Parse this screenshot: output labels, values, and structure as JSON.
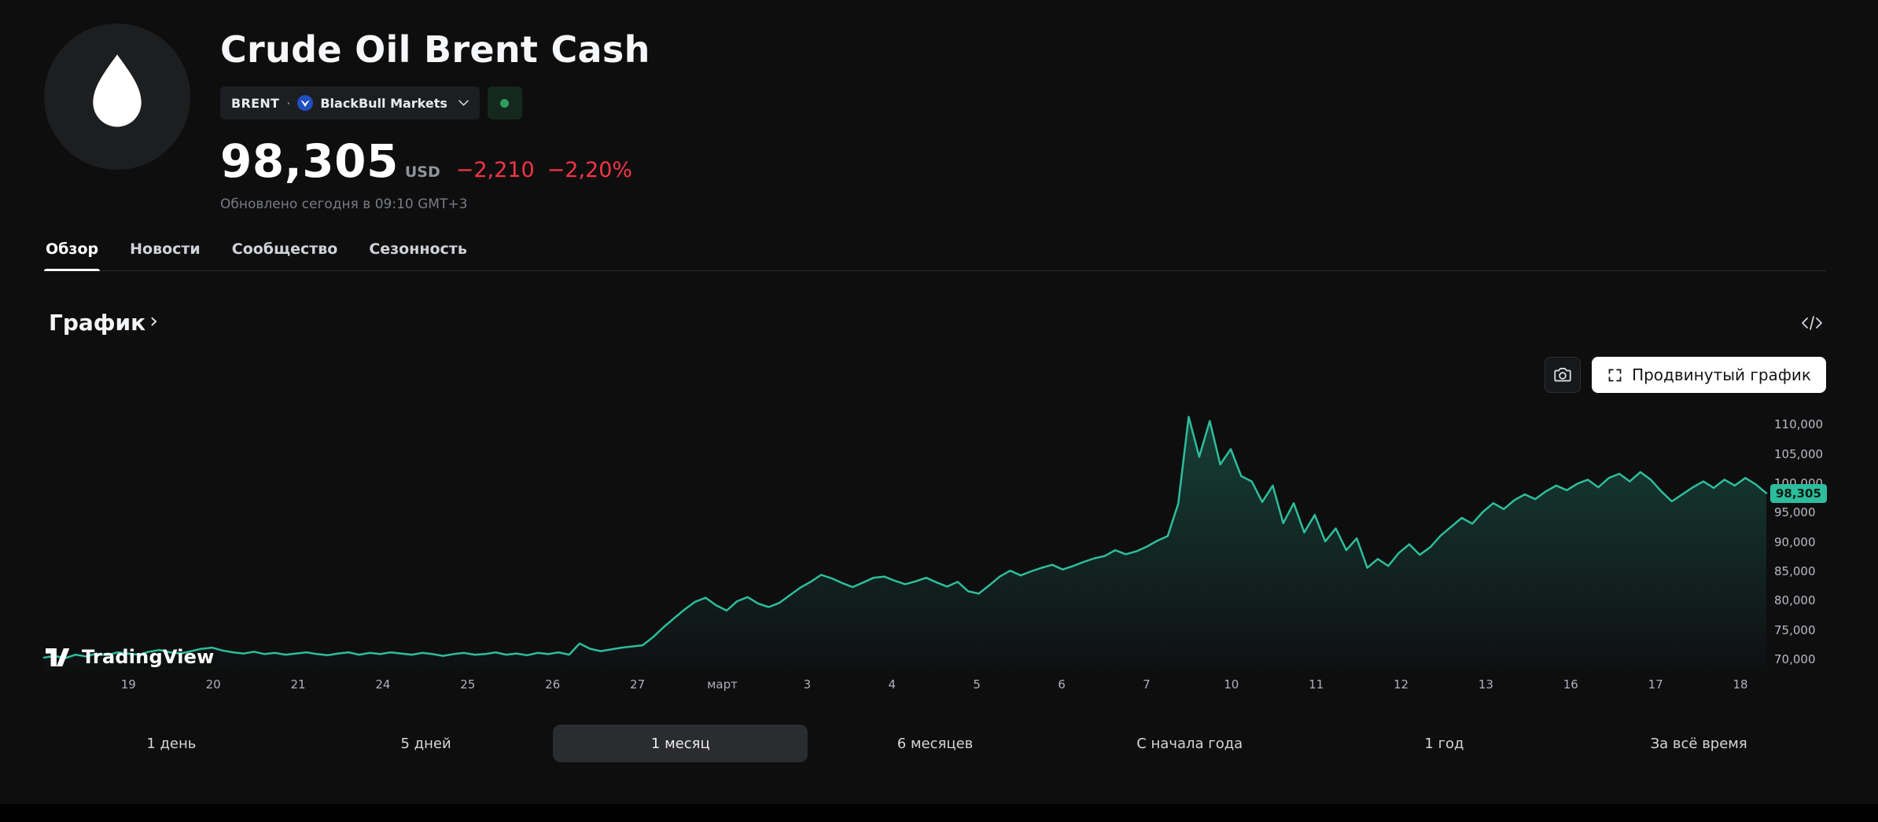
{
  "header": {
    "title": "Crude Oil Brent Cash",
    "symbol": "BRENT",
    "separator": "·",
    "broker": "BlackBull Markets",
    "price": "98,305",
    "currency": "USD",
    "change": "−2,210",
    "change_pct": "−2,20%",
    "change_color": "#f23645",
    "status_color": "#2e9e5b",
    "updated": "Обновлено сегодня в 09:10 GMT+3"
  },
  "tabs": [
    {
      "label": "Обзор",
      "active": true
    },
    {
      "label": "Новости",
      "active": false
    },
    {
      "label": "Сообщество",
      "active": false
    },
    {
      "label": "Сезонность",
      "active": false
    }
  ],
  "section": {
    "title": "График",
    "chevron": "›"
  },
  "chart_toolbar": {
    "advanced_button": "Продвинутый график"
  },
  "watermark": "TradingView",
  "ranges": [
    {
      "label": "1 день",
      "active": false
    },
    {
      "label": "5 дней",
      "active": false
    },
    {
      "label": "1 месяц",
      "active": true
    },
    {
      "label": "6 месяцев",
      "active": false
    },
    {
      "label": "С начала года",
      "active": false
    },
    {
      "label": "1 год",
      "active": false
    },
    {
      "label": "За всё время",
      "active": false
    }
  ],
  "chart_data": {
    "type": "area",
    "title": "Crude Oil Brent Cash — 1 месяц",
    "line_color": "#2ebd9c",
    "grid": false,
    "legend": false,
    "ylim": [
      68,
      113.5
    ],
    "x_labels": [
      "19",
      "20",
      "21",
      "24",
      "25",
      "26",
      "27",
      "март",
      "3",
      "4",
      "5",
      "6",
      "7",
      "10",
      "11",
      "12",
      "13",
      "16",
      "17",
      "18"
    ],
    "y_ticks": [
      {
        "value": 110,
        "label": "110,000"
      },
      {
        "value": 105,
        "label": "105,000"
      },
      {
        "value": 100,
        "label": "100,000"
      },
      {
        "value": 95,
        "label": "95,000"
      },
      {
        "value": 90,
        "label": "90,000"
      },
      {
        "value": 85,
        "label": "85,000"
      },
      {
        "value": 80,
        "label": "80,000"
      },
      {
        "value": 75,
        "label": "75,000"
      },
      {
        "value": 70,
        "label": "70,000"
      }
    ],
    "last_price": {
      "value": 98.305,
      "label": "98,305"
    },
    "values": [
      70.3,
      70.6,
      70.2,
      70.8,
      70.5,
      71.0,
      70.7,
      71.2,
      71.0,
      70.8,
      71.3,
      71.6,
      71.2,
      71.0,
      71.4,
      71.8,
      72.0,
      71.5,
      71.2,
      71.0,
      71.3,
      70.9,
      71.1,
      70.8,
      71.0,
      71.2,
      70.9,
      70.7,
      71.0,
      71.2,
      70.8,
      71.1,
      70.9,
      71.2,
      71.0,
      70.8,
      71.1,
      70.9,
      70.6,
      70.9,
      71.1,
      70.8,
      70.9,
      71.2,
      70.8,
      71.0,
      70.7,
      71.1,
      70.9,
      71.2,
      70.8,
      72.7,
      71.8,
      71.4,
      71.7,
      72.0,
      72.2,
      72.4,
      73.8,
      75.5,
      77.0,
      78.5,
      79.8,
      80.5,
      79.2,
      78.3,
      79.9,
      80.6,
      79.5,
      78.9,
      79.6,
      80.9,
      82.2,
      83.2,
      84.4,
      83.8,
      83.0,
      82.3,
      83.1,
      83.9,
      84.1,
      83.4,
      82.8,
      83.3,
      83.9,
      83.1,
      82.4,
      83.2,
      81.6,
      81.2,
      82.6,
      84.1,
      85.1,
      84.3,
      85.0,
      85.6,
      86.1,
      85.3,
      85.9,
      86.6,
      87.2,
      87.6,
      88.6,
      87.9,
      88.4,
      89.2,
      90.2,
      91.0,
      96.5,
      111.3,
      104.5,
      110.6,
      103.2,
      105.8,
      101.2,
      100.3,
      96.8,
      99.6,
      93.2,
      96.6,
      91.6,
      94.6,
      90.1,
      92.3,
      88.6,
      90.6,
      85.6,
      87.1,
      85.9,
      88.1,
      89.6,
      87.8,
      89.1,
      91.1,
      92.6,
      94.1,
      93.1,
      95.1,
      96.6,
      95.6,
      97.1,
      98.1,
      97.3,
      98.6,
      99.6,
      98.8,
      99.9,
      100.6,
      99.3,
      100.9,
      101.6,
      100.3,
      101.9,
      100.6,
      98.6,
      96.9,
      98.1,
      99.3,
      100.3,
      99.2,
      100.6,
      99.6,
      100.9,
      99.8,
      98.3
    ]
  }
}
